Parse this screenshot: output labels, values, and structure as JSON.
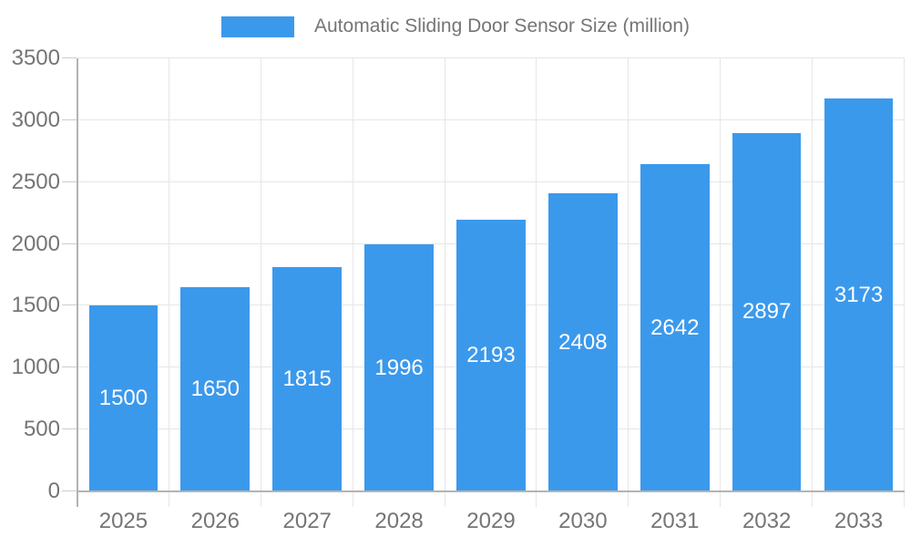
{
  "chart_data": {
    "type": "bar",
    "title": "Automatic Sliding Door Sensor Size (million)",
    "legend": {
      "position": "top",
      "label": "Automatic Sliding Door Sensor Size (million)"
    },
    "categories": [
      "2025",
      "2026",
      "2027",
      "2028",
      "2029",
      "2030",
      "2031",
      "2032",
      "2033"
    ],
    "series": [
      {
        "name": "Automatic Sliding Door Sensor Size (million)",
        "values": [
          1500,
          1650,
          1815,
          1996,
          2193,
          2408,
          2642,
          2897,
          3173
        ]
      }
    ],
    "bar_value_labels": [
      "1500",
      "1650",
      "1815",
      "1996",
      "2193",
      "2408",
      "2642",
      "2897",
      "3173"
    ],
    "xlabel": "",
    "ylabel": "",
    "ylim": [
      0,
      3500
    ],
    "yticks": [
      0,
      500,
      1000,
      1500,
      2000,
      2500,
      3000,
      3500
    ],
    "grid": true,
    "colors": {
      "bar": "#3B99EC",
      "bar_label_text": "#FFFFFF",
      "axis_text": "#757575",
      "legend_text": "#757575",
      "gridline": "#E6E6E6",
      "axis_line": "#B3B3B3",
      "tick": "#CCCCCC",
      "background": "#FFFFFF"
    }
  }
}
